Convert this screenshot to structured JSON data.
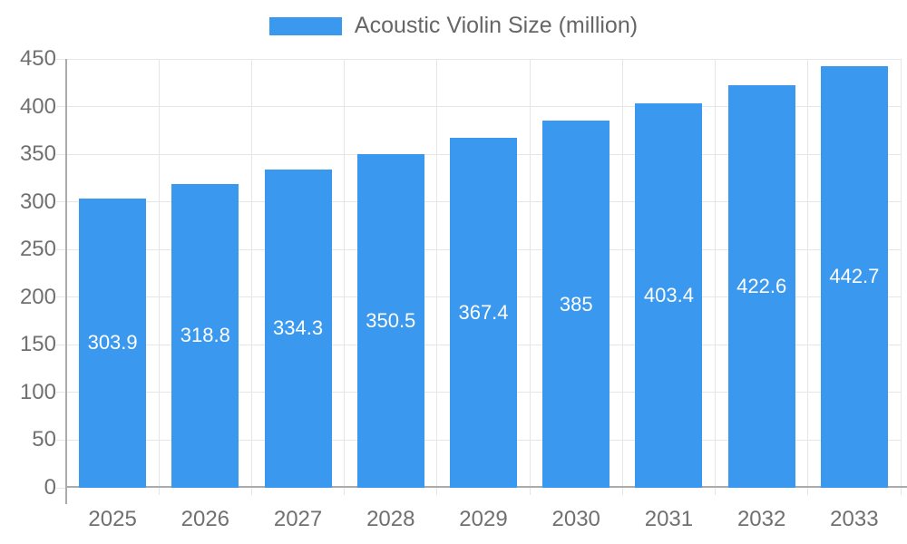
{
  "chart_data": {
    "type": "bar",
    "title": "",
    "legend": "Acoustic Violin Size (million)",
    "legend_position": "top",
    "categories": [
      "2025",
      "2026",
      "2027",
      "2028",
      "2029",
      "2030",
      "2031",
      "2032",
      "2033"
    ],
    "series": [
      {
        "name": "Acoustic Violin Size (million)",
        "values": [
          303.9,
          318.8,
          334.3,
          350.5,
          367.4,
          385,
          403.4,
          422.6,
          442.7
        ],
        "value_labels": [
          "303.9",
          "318.8",
          "334.3",
          "350.5",
          "367.4",
          "385",
          "403.4",
          "422.6",
          "442.7"
        ]
      }
    ],
    "xlabel": "",
    "ylabel": "",
    "ylim": [
      0,
      450
    ],
    "ytick_step": 50,
    "yticks": [
      "0",
      "50",
      "100",
      "150",
      "200",
      "250",
      "300",
      "350",
      "400",
      "450"
    ],
    "grid": true,
    "colors": {
      "bar": "#3A99EE",
      "grid_line": "#E6E6E6",
      "axis_line": "#ABABAB",
      "axis_label": "#707070",
      "legend_text": "#666666",
      "value_label": "#FFFFFF",
      "background": "#FFFFFF"
    }
  }
}
